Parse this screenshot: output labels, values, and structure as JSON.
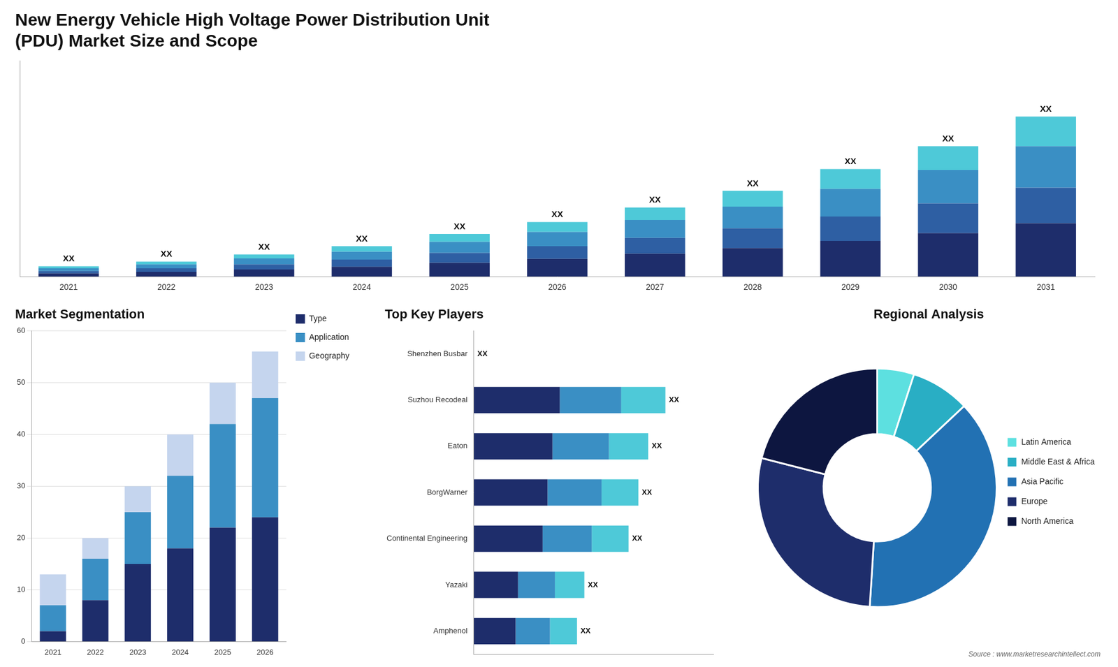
{
  "chart_data": [
    {
      "type": "bar",
      "title": "New Energy Vehicle High Voltage Power Distribution Unit\n(PDU) Market Size and Scope",
      "categories": [
        2021,
        2022,
        2023,
        2024,
        2025,
        2026,
        2027,
        2028,
        2029,
        2030,
        2031
      ],
      "series": [
        {
          "color": "#1e2d6b",
          "values": [
            0.8,
            1.2,
            1.8,
            2.5,
            3.5,
            4.5,
            5.8,
            7.2,
            9.0,
            11.0,
            13.5
          ]
        },
        {
          "color": "#2e5fa3",
          "values": [
            0.6,
            0.9,
            1.3,
            1.8,
            2.5,
            3.2,
            4.0,
            5.0,
            6.2,
            7.5,
            9.0
          ]
        },
        {
          "color": "#3a8fc4",
          "values": [
            0.7,
            1.0,
            1.5,
            2.0,
            2.8,
            3.6,
            4.5,
            5.5,
            7.0,
            8.5,
            10.5
          ]
        },
        {
          "color": "#4ec9d8",
          "values": [
            0.5,
            0.7,
            1.0,
            1.4,
            2.0,
            2.5,
            3.2,
            4.0,
            5.0,
            6.0,
            7.5
          ]
        }
      ],
      "stacked": true,
      "ylim": [
        0,
        54.675
      ],
      "tick_labels": "x",
      "grid": false,
      "annotations": [
        {
          "category": 2021,
          "text": "XX"
        },
        {
          "category": 2022,
          "text": "XX"
        },
        {
          "category": 2023,
          "text": "XX"
        },
        {
          "category": 2024,
          "text": "XX"
        },
        {
          "category": 2025,
          "text": "XX"
        },
        {
          "category": 2026,
          "text": "XX"
        },
        {
          "category": 2027,
          "text": "XX"
        },
        {
          "category": 2028,
          "text": "XX"
        },
        {
          "category": 2029,
          "text": "XX"
        },
        {
          "category": 2030,
          "text": "XX"
        },
        {
          "category": 2031,
          "text": "XX"
        }
      ]
    },
    {
      "type": "bar",
      "title": "Market Segmentation",
      "categories": [
        2021,
        2022,
        2023,
        2024,
        2025,
        2026
      ],
      "series": [
        {
          "name": "Type",
          "color": "#1e2d6b",
          "values": [
            2,
            8,
            15,
            18,
            22,
            24
          ]
        },
        {
          "name": "Application",
          "color": "#3a8fc4",
          "values": [
            5,
            8,
            10,
            14,
            20,
            23
          ]
        },
        {
          "name": "Geography",
          "color": "#c5d5ee",
          "values": [
            6,
            4,
            5,
            8,
            8,
            9
          ]
        }
      ],
      "stacked": true,
      "ylim": [
        0,
        60
      ],
      "yticks": [
        0,
        10,
        20,
        30,
        40,
        50,
        60
      ],
      "grid": true,
      "legend": "right"
    },
    {
      "type": "bar",
      "orientation": "horizontal",
      "title": "Top Key Players",
      "categories": [
        "Shenzhen Busbar",
        "Suzhou Recodeal",
        "Eaton",
        "BorgWarner",
        "Continental Engineering",
        "Yazaki",
        "Amphenol"
      ],
      "series": [
        {
          "color": "#1e2d6b",
          "values": [
            0,
            3.5,
            3.2,
            3.0,
            2.8,
            1.8,
            1.7
          ]
        },
        {
          "color": "#3a8fc4",
          "values": [
            0,
            2.5,
            2.3,
            2.2,
            2.0,
            1.5,
            1.4
          ]
        },
        {
          "color": "#4ec9d8",
          "values": [
            0,
            1.8,
            1.6,
            1.5,
            1.5,
            1.2,
            1.1
          ]
        }
      ],
      "stacked": true,
      "xlim": [
        0,
        9.75
      ],
      "tick_labels": "y",
      "grid": false,
      "annotations": [
        {
          "category": "Shenzhen Busbar",
          "text": "XX"
        },
        {
          "category": "Suzhou Recodeal",
          "text": "XX"
        },
        {
          "category": "Eaton",
          "text": "XX"
        },
        {
          "category": "BorgWarner",
          "text": "XX"
        },
        {
          "category": "Continental Engineering",
          "text": "XX"
        },
        {
          "category": "Yazaki",
          "text": "XX"
        },
        {
          "category": "Amphenol",
          "text": "XX"
        }
      ]
    },
    {
      "type": "doughnut",
      "title": "Regional Analysis",
      "categories": [
        "Latin America",
        "Middle East &\nAfrica",
        "Asia Pacific",
        "Europe",
        "North America"
      ],
      "values": [
        5,
        8,
        38,
        28,
        21
      ],
      "colors": [
        "#5de0e0",
        "#29aec4",
        "#2271b3",
        "#1e2d6b",
        "#0d1640"
      ],
      "legend": "right",
      "annotations": [
        "Source : www.marketresearchintellect.com"
      ]
    }
  ]
}
